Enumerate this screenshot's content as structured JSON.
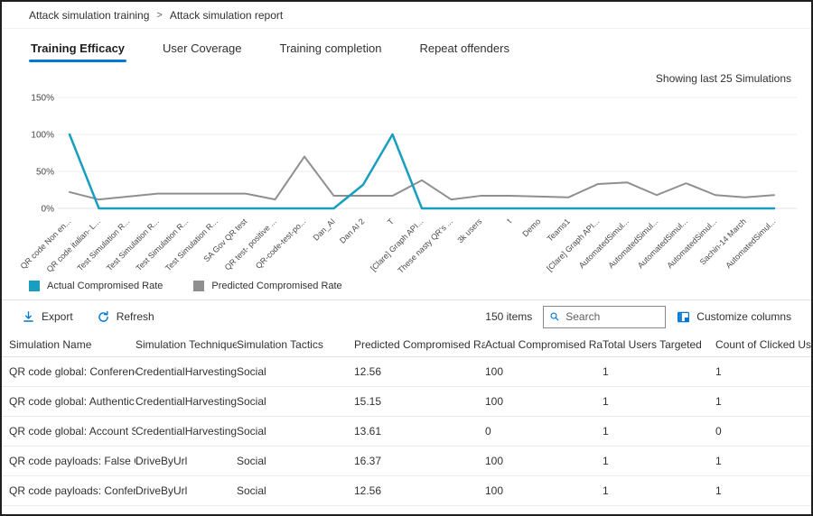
{
  "breadcrumb": {
    "items": [
      "Attack simulation training",
      "Attack simulation report"
    ],
    "separator": ">"
  },
  "tabs": [
    {
      "label": "Training Efficacy",
      "active": true
    },
    {
      "label": "User Coverage",
      "active": false
    },
    {
      "label": "Training completion",
      "active": false
    },
    {
      "label": "Repeat offenders",
      "active": false
    }
  ],
  "chart_data": {
    "type": "line",
    "note": "Showing last 25 Simulations",
    "categories": [
      "QR code Non en...",
      "QR code italian- L...",
      "Test Simulation R...",
      "Test Simulation R...",
      "Test Simulation R...",
      "Test Simulation R...",
      "SA Gov QR test",
      "QR test- positive ...",
      "QR-code-test-po...",
      "Dan_AI",
      "Dan AI 2",
      "T",
      "[Clare] Graph API...",
      "These nasty QR's ...",
      "3k users",
      "t",
      "Demo",
      "Teams1",
      "[Clare] Graph API...",
      "AutomatedSimul...",
      "AutomatedSimul...",
      "AutomatedSimul...",
      "AutomatedSimul...",
      "Sachin-14 March",
      "AutomatedSimul..."
    ],
    "series": [
      {
        "name": "Actual Compromised Rate",
        "color": "#189ebe",
        "values": [
          100,
          0,
          0,
          0,
          0,
          0,
          0,
          0,
          0,
          0,
          32,
          100,
          0,
          0,
          0,
          0,
          0,
          0,
          0,
          0,
          0,
          0,
          0,
          0,
          0
        ]
      },
      {
        "name": "Predicted Compromised Rate",
        "color": "#8f8f8f",
        "values": [
          22,
          12,
          16,
          20,
          20,
          20,
          20,
          12,
          70,
          17,
          17,
          17,
          38,
          12,
          17,
          17,
          16,
          15,
          33,
          35,
          18,
          34,
          18,
          15,
          18
        ]
      }
    ],
    "ylim": [
      0,
      150
    ],
    "yticks": [
      "0%",
      "50%",
      "100%",
      "150%"
    ],
    "grid": true,
    "legend_position": "bottom-left"
  },
  "toolbar": {
    "export_label": "Export",
    "refresh_label": "Refresh",
    "items_count": "150 items",
    "search_placeholder": "Search",
    "customize_label": "Customize columns",
    "icons": {
      "export": "download-icon",
      "refresh": "refresh-icon",
      "search": "search-icon",
      "customize": "customize-columns-icon"
    },
    "accent_color": "#0078d4"
  },
  "table": {
    "columns": [
      "Simulation Name",
      "Simulation Technique",
      "Simulation Tactics",
      "Predicted Compromised Rate",
      "Actual Compromised Rate",
      "Total Users Targeted",
      "Count of Clicked Users"
    ],
    "rows": [
      [
        "QR code global: Conferenc...",
        "CredentialHarvesting",
        "Social",
        "12.56",
        "100",
        "1",
        "1"
      ],
      [
        "QR code global: Authentic...",
        "CredentialHarvesting",
        "Social",
        "15.15",
        "100",
        "1",
        "1"
      ],
      [
        "QR code global: Account S...",
        "CredentialHarvesting",
        "Social",
        "13.61",
        "0",
        "1",
        "0"
      ],
      [
        "QR code payloads: False Ch...",
        "DriveByUrl",
        "Social",
        "16.37",
        "100",
        "1",
        "1"
      ],
      [
        "QR code payloads: Confere...",
        "DriveByUrl",
        "Social",
        "12.56",
        "100",
        "1",
        "1"
      ]
    ]
  }
}
